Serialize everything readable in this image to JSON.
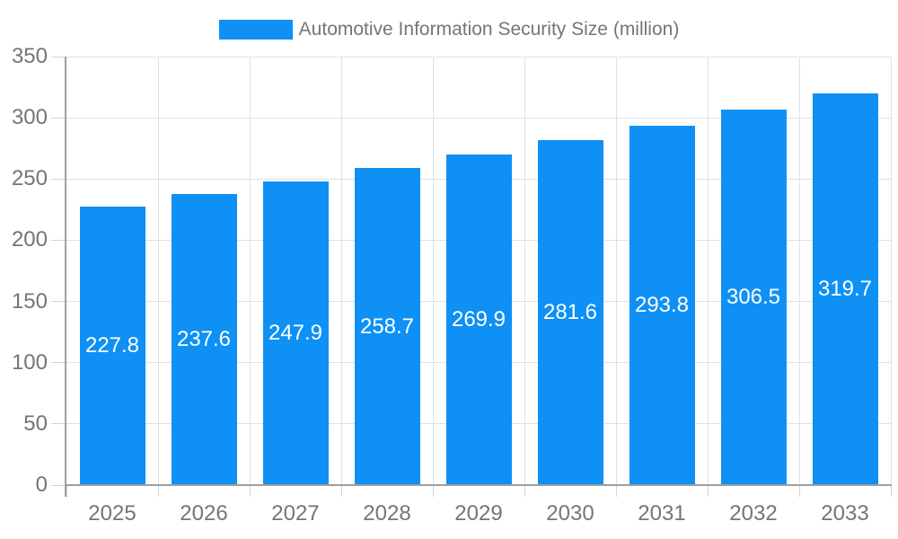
{
  "colors": {
    "bar": "#0E90F5",
    "grid_line": "#e0e0e0",
    "tick_line": "#d4d4d4",
    "axis_line": "#9e9e9e",
    "axis_label": "#757575",
    "legend_text": "#757575",
    "value_label": "#ffffff",
    "background": "#ffffff"
  },
  "legend": {
    "label": "Automotive Information Security Size (million)"
  },
  "chart_data": {
    "type": "bar",
    "title": "Automotive Information Security Size (million)",
    "categories": [
      "2025",
      "2026",
      "2027",
      "2028",
      "2029",
      "2030",
      "2031",
      "2032",
      "2033"
    ],
    "values": [
      227.8,
      237.6,
      247.9,
      258.7,
      269.9,
      281.6,
      293.8,
      306.5,
      319.7
    ],
    "value_labels": [
      "227.8",
      "237.6",
      "247.9",
      "258.7",
      "269.9",
      "281.6",
      "293.8",
      "306.5",
      "319.7"
    ],
    "ytick_labels": [
      "0",
      "50",
      "100",
      "150",
      "200",
      "250",
      "300",
      "350"
    ],
    "yticks": [
      0,
      50,
      100,
      150,
      200,
      250,
      300,
      350
    ],
    "ylim": [
      0,
      350
    ],
    "xlabel": "",
    "ylabel": "",
    "grid": true,
    "legend_position": "top",
    "value_label_position": "inside-center"
  }
}
